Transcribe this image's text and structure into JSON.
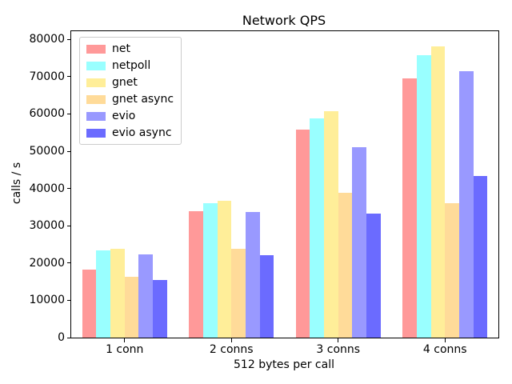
{
  "chart_data": {
    "type": "bar",
    "title": "Network QPS",
    "xlabel": "512 bytes per call",
    "ylabel": "calls / s",
    "categories": [
      "1 conn",
      "2 conns",
      "3 conns",
      "4 conns"
    ],
    "series": [
      {
        "name": "net",
        "color": "#FF9999",
        "values": [
          18300,
          34000,
          55800,
          69500
        ]
      },
      {
        "name": "netpoll",
        "color": "#99FFFF",
        "values": [
          23300,
          36100,
          58900,
          75700
        ]
      },
      {
        "name": "gnet",
        "color": "#FFEE99",
        "values": [
          23800,
          36600,
          60700,
          78200
        ]
      },
      {
        "name": "gnet async",
        "color": "#FFDB99",
        "values": [
          16400,
          23800,
          38800,
          36100
        ]
      },
      {
        "name": "evio",
        "color": "#9999FF",
        "values": [
          22400,
          33600,
          51100,
          71500
        ]
      },
      {
        "name": "evio async",
        "color": "#6B6BFF",
        "values": [
          15400,
          22200,
          33300,
          43300
        ]
      }
    ],
    "yticks": [
      0,
      10000,
      20000,
      30000,
      40000,
      50000,
      60000,
      70000,
      80000
    ],
    "ytick_labels": [
      "0",
      "10000",
      "20000",
      "30000",
      "40000",
      "50000",
      "60000",
      "70000",
      "80000"
    ],
    "ylim": [
      0,
      82200
    ],
    "grid": false,
    "legend_position": "upper left",
    "axis_color": "#000000",
    "background": "#ffffff"
  }
}
